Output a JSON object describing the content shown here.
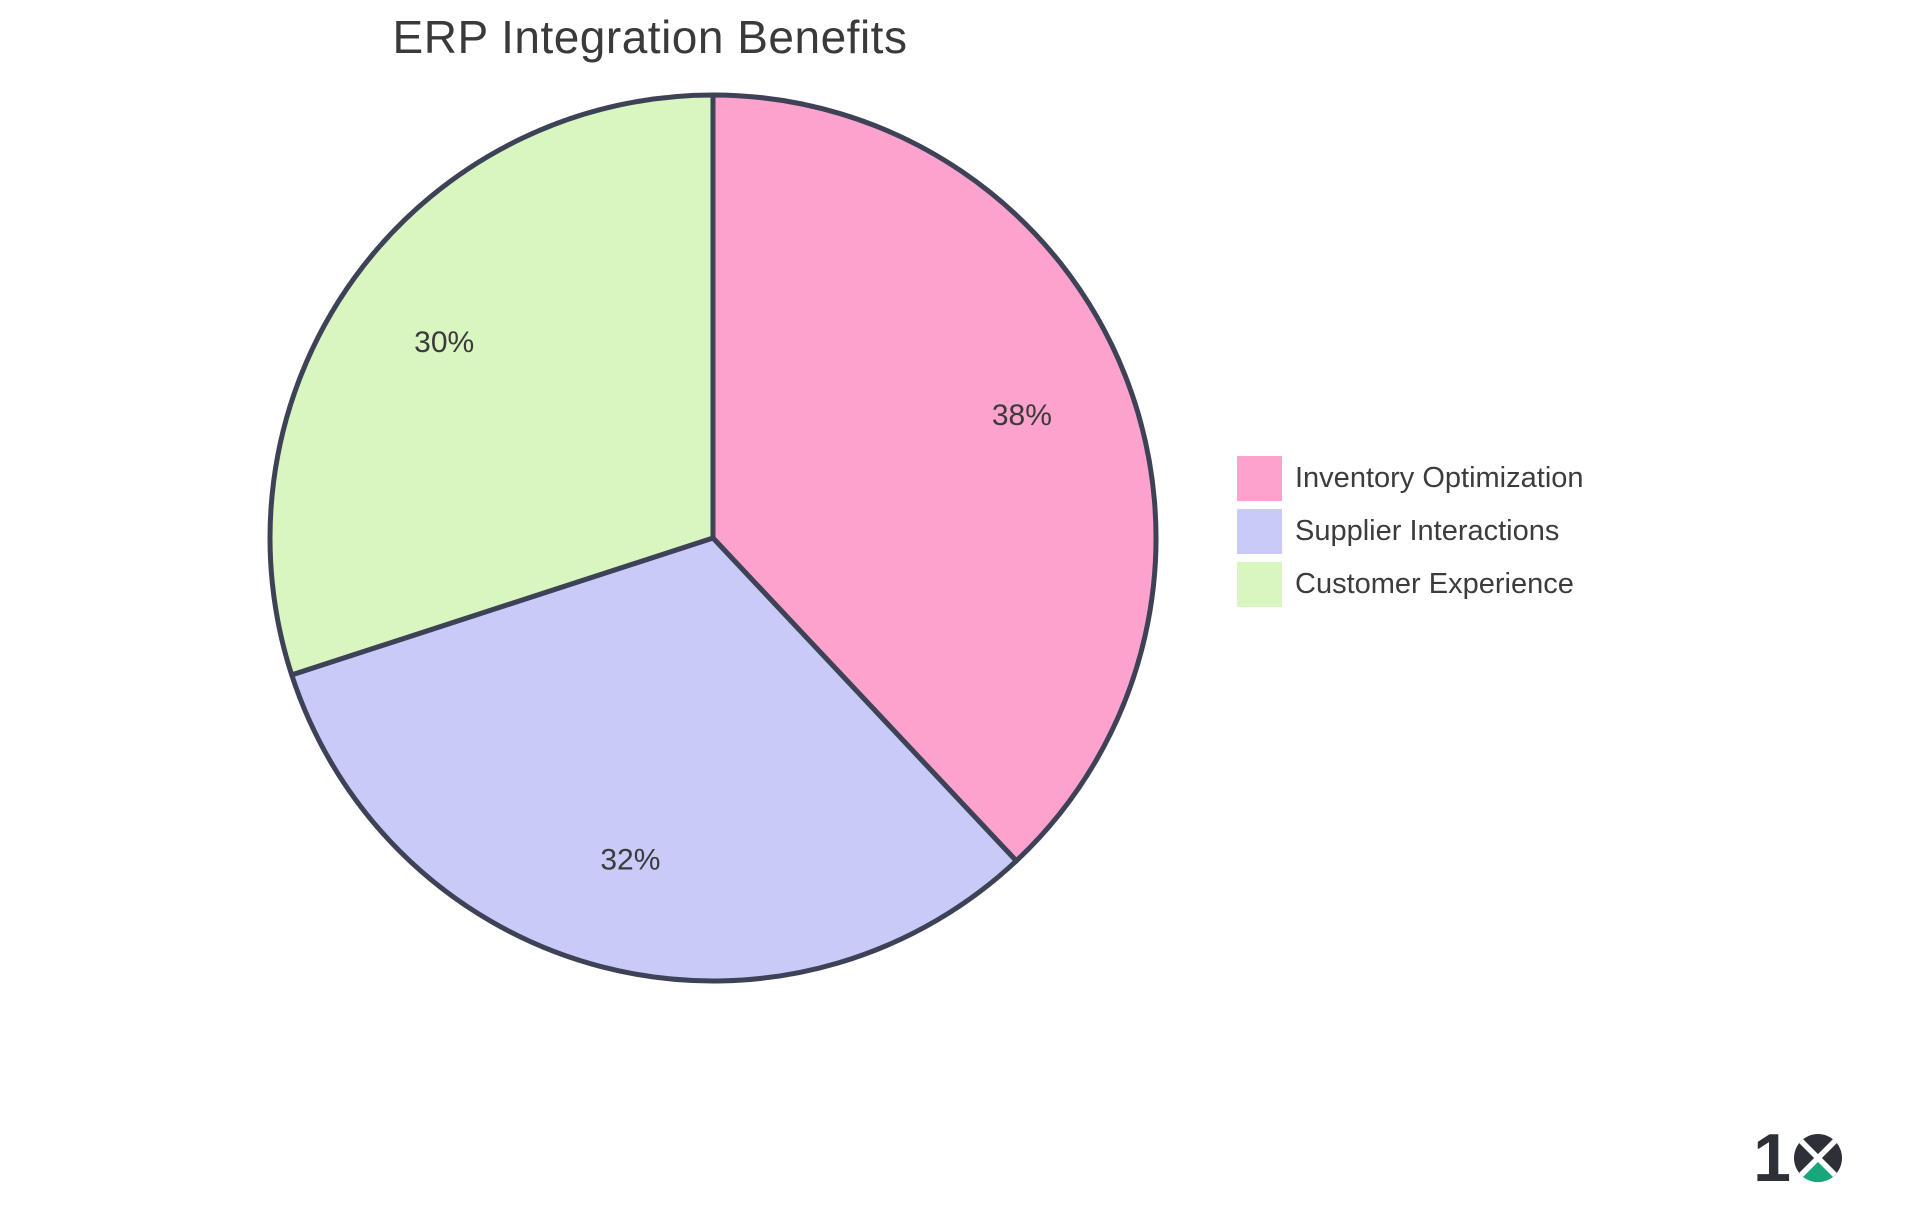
{
  "chart_data": {
    "type": "pie",
    "title": "ERP Integration Benefits",
    "labels": [
      "Inventory Optimization",
      "Supplier Interactions",
      "Customer Experience"
    ],
    "values": [
      38,
      32,
      30
    ],
    "value_labels": [
      "38%",
      "32%",
      "30%"
    ],
    "colors": [
      "#FCA2CD",
      "#C8CBF7",
      "#D9F6C1"
    ],
    "outline_color": "#3E4257",
    "label_color": "#3B3B3B",
    "start_angle": "top",
    "direction": "clockwise",
    "legend_position": "right",
    "grid": "off"
  },
  "legend": {
    "items": [
      {
        "label": "Inventory Optimization"
      },
      {
        "label": "Supplier Interactions"
      },
      {
        "label": "Customer Experience"
      }
    ]
  },
  "logo": {
    "number": "1",
    "dark_color": "#2D3137",
    "green_color": "#18A77D",
    "x_color": "#FFFFFF"
  }
}
